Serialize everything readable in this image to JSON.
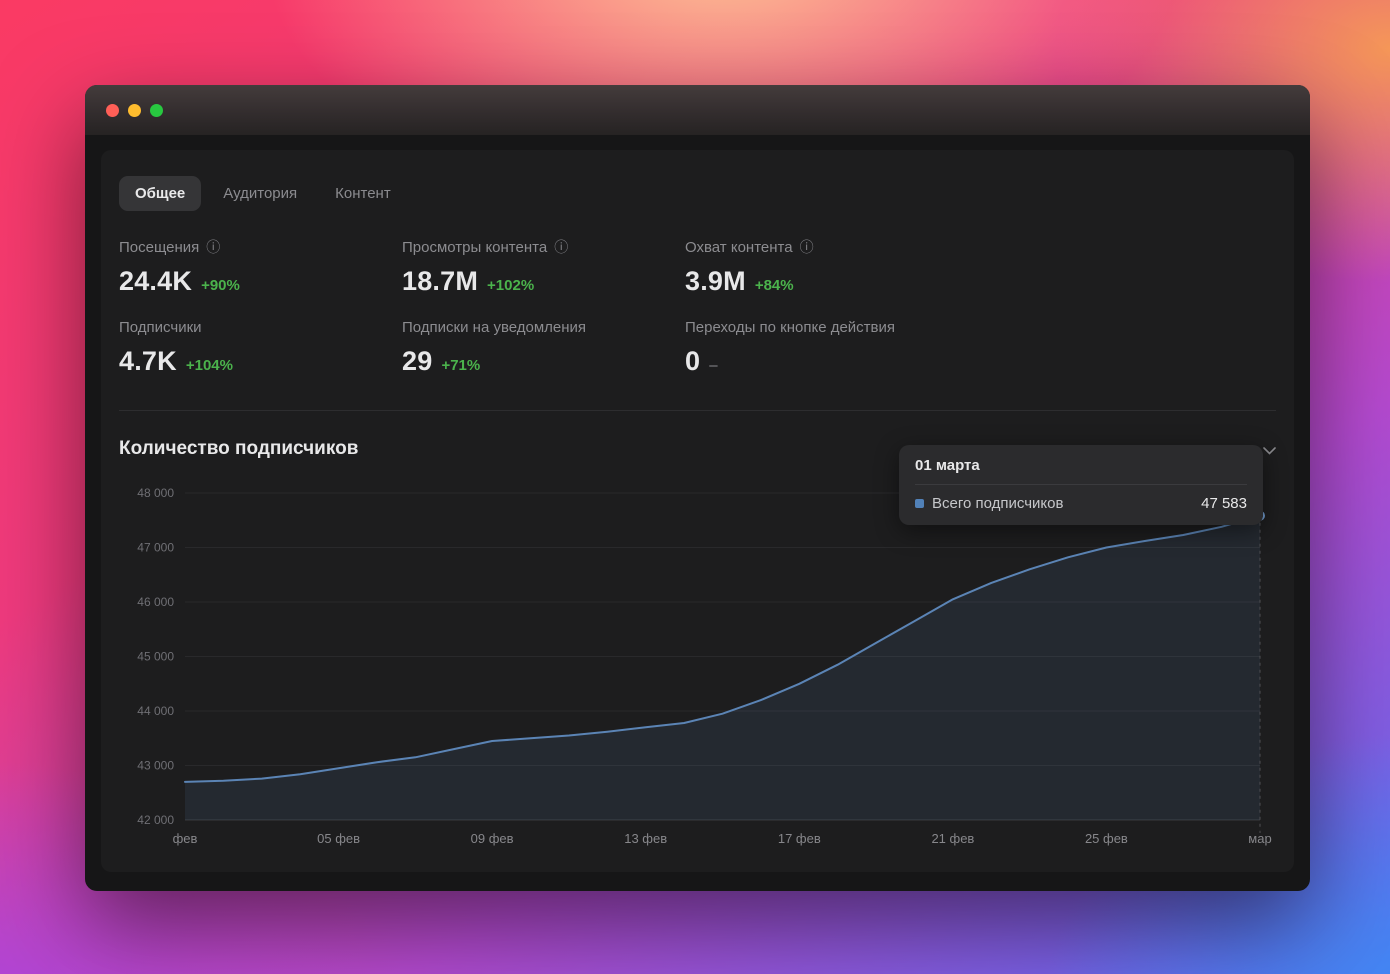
{
  "window": {
    "controls": [
      "close",
      "minimize",
      "zoom"
    ]
  },
  "icons": {
    "info": "ⓘ"
  },
  "tabs": [
    {
      "label": "Общее",
      "active": true
    },
    {
      "label": "Аудитория",
      "active": false
    },
    {
      "label": "Контент",
      "active": false
    }
  ],
  "stats": [
    {
      "label": "Посещения",
      "has_info": true,
      "value": "24.4K",
      "delta": "+90%",
      "delta_positive": true
    },
    {
      "label": "Просмотры контента",
      "has_info": true,
      "value": "18.7M",
      "delta": "+102%",
      "delta_positive": true
    },
    {
      "label": "Охват контента",
      "has_info": true,
      "value": "3.9M",
      "delta": "+84%",
      "delta_positive": true
    },
    {
      "label": "Подписчики",
      "has_info": false,
      "value": "4.7K",
      "delta": "+104%",
      "delta_positive": true
    },
    {
      "label": "Подписки на уведомления",
      "has_info": false,
      "value": "29",
      "delta": "+71%",
      "delta_positive": true
    },
    {
      "label": "Переходы по кнопке действия",
      "has_info": false,
      "value": "0",
      "delta": "–",
      "delta_positive": false
    }
  ],
  "chart": {
    "title": "Количество подписчиков",
    "tooltip": {
      "date": "01 марта",
      "series_label": "Всего подписчиков",
      "value": "47 583",
      "marker_color": "#5181b8"
    }
  },
  "chart_data": {
    "type": "area",
    "title": "Количество подписчиков",
    "series": [
      {
        "name": "Всего подписчиков",
        "color": "#5b84b5",
        "values": [
          42700,
          42720,
          42760,
          42840,
          42950,
          43060,
          43150,
          43300,
          43450,
          43500,
          43550,
          43620,
          43700,
          43780,
          43950,
          44200,
          44500,
          44850,
          45250,
          45650,
          46050,
          46350,
          46600,
          46820,
          47000,
          47120,
          47230,
          47380,
          47583
        ]
      }
    ],
    "x_tick_labels": [
      "фев",
      "05 фев",
      "09 фев",
      "13 фев",
      "17 фев",
      "21 фев",
      "25 фев",
      "мар"
    ],
    "x_tick_indices": [
      0,
      4,
      8,
      12,
      16,
      20,
      24,
      28
    ],
    "y_ticks": [
      42000,
      43000,
      44000,
      45000,
      46000,
      47000,
      48000
    ],
    "y_tick_labels": [
      "42 000",
      "43 000",
      "44 000",
      "45 000",
      "46 000",
      "47 000",
      "48 000"
    ],
    "ylim": [
      42000,
      48000
    ],
    "grid": true,
    "area_opacity": 0.12,
    "highlight": {
      "index": 28,
      "label": "01 марта",
      "value": 47583,
      "value_formatted": "47 583"
    }
  }
}
